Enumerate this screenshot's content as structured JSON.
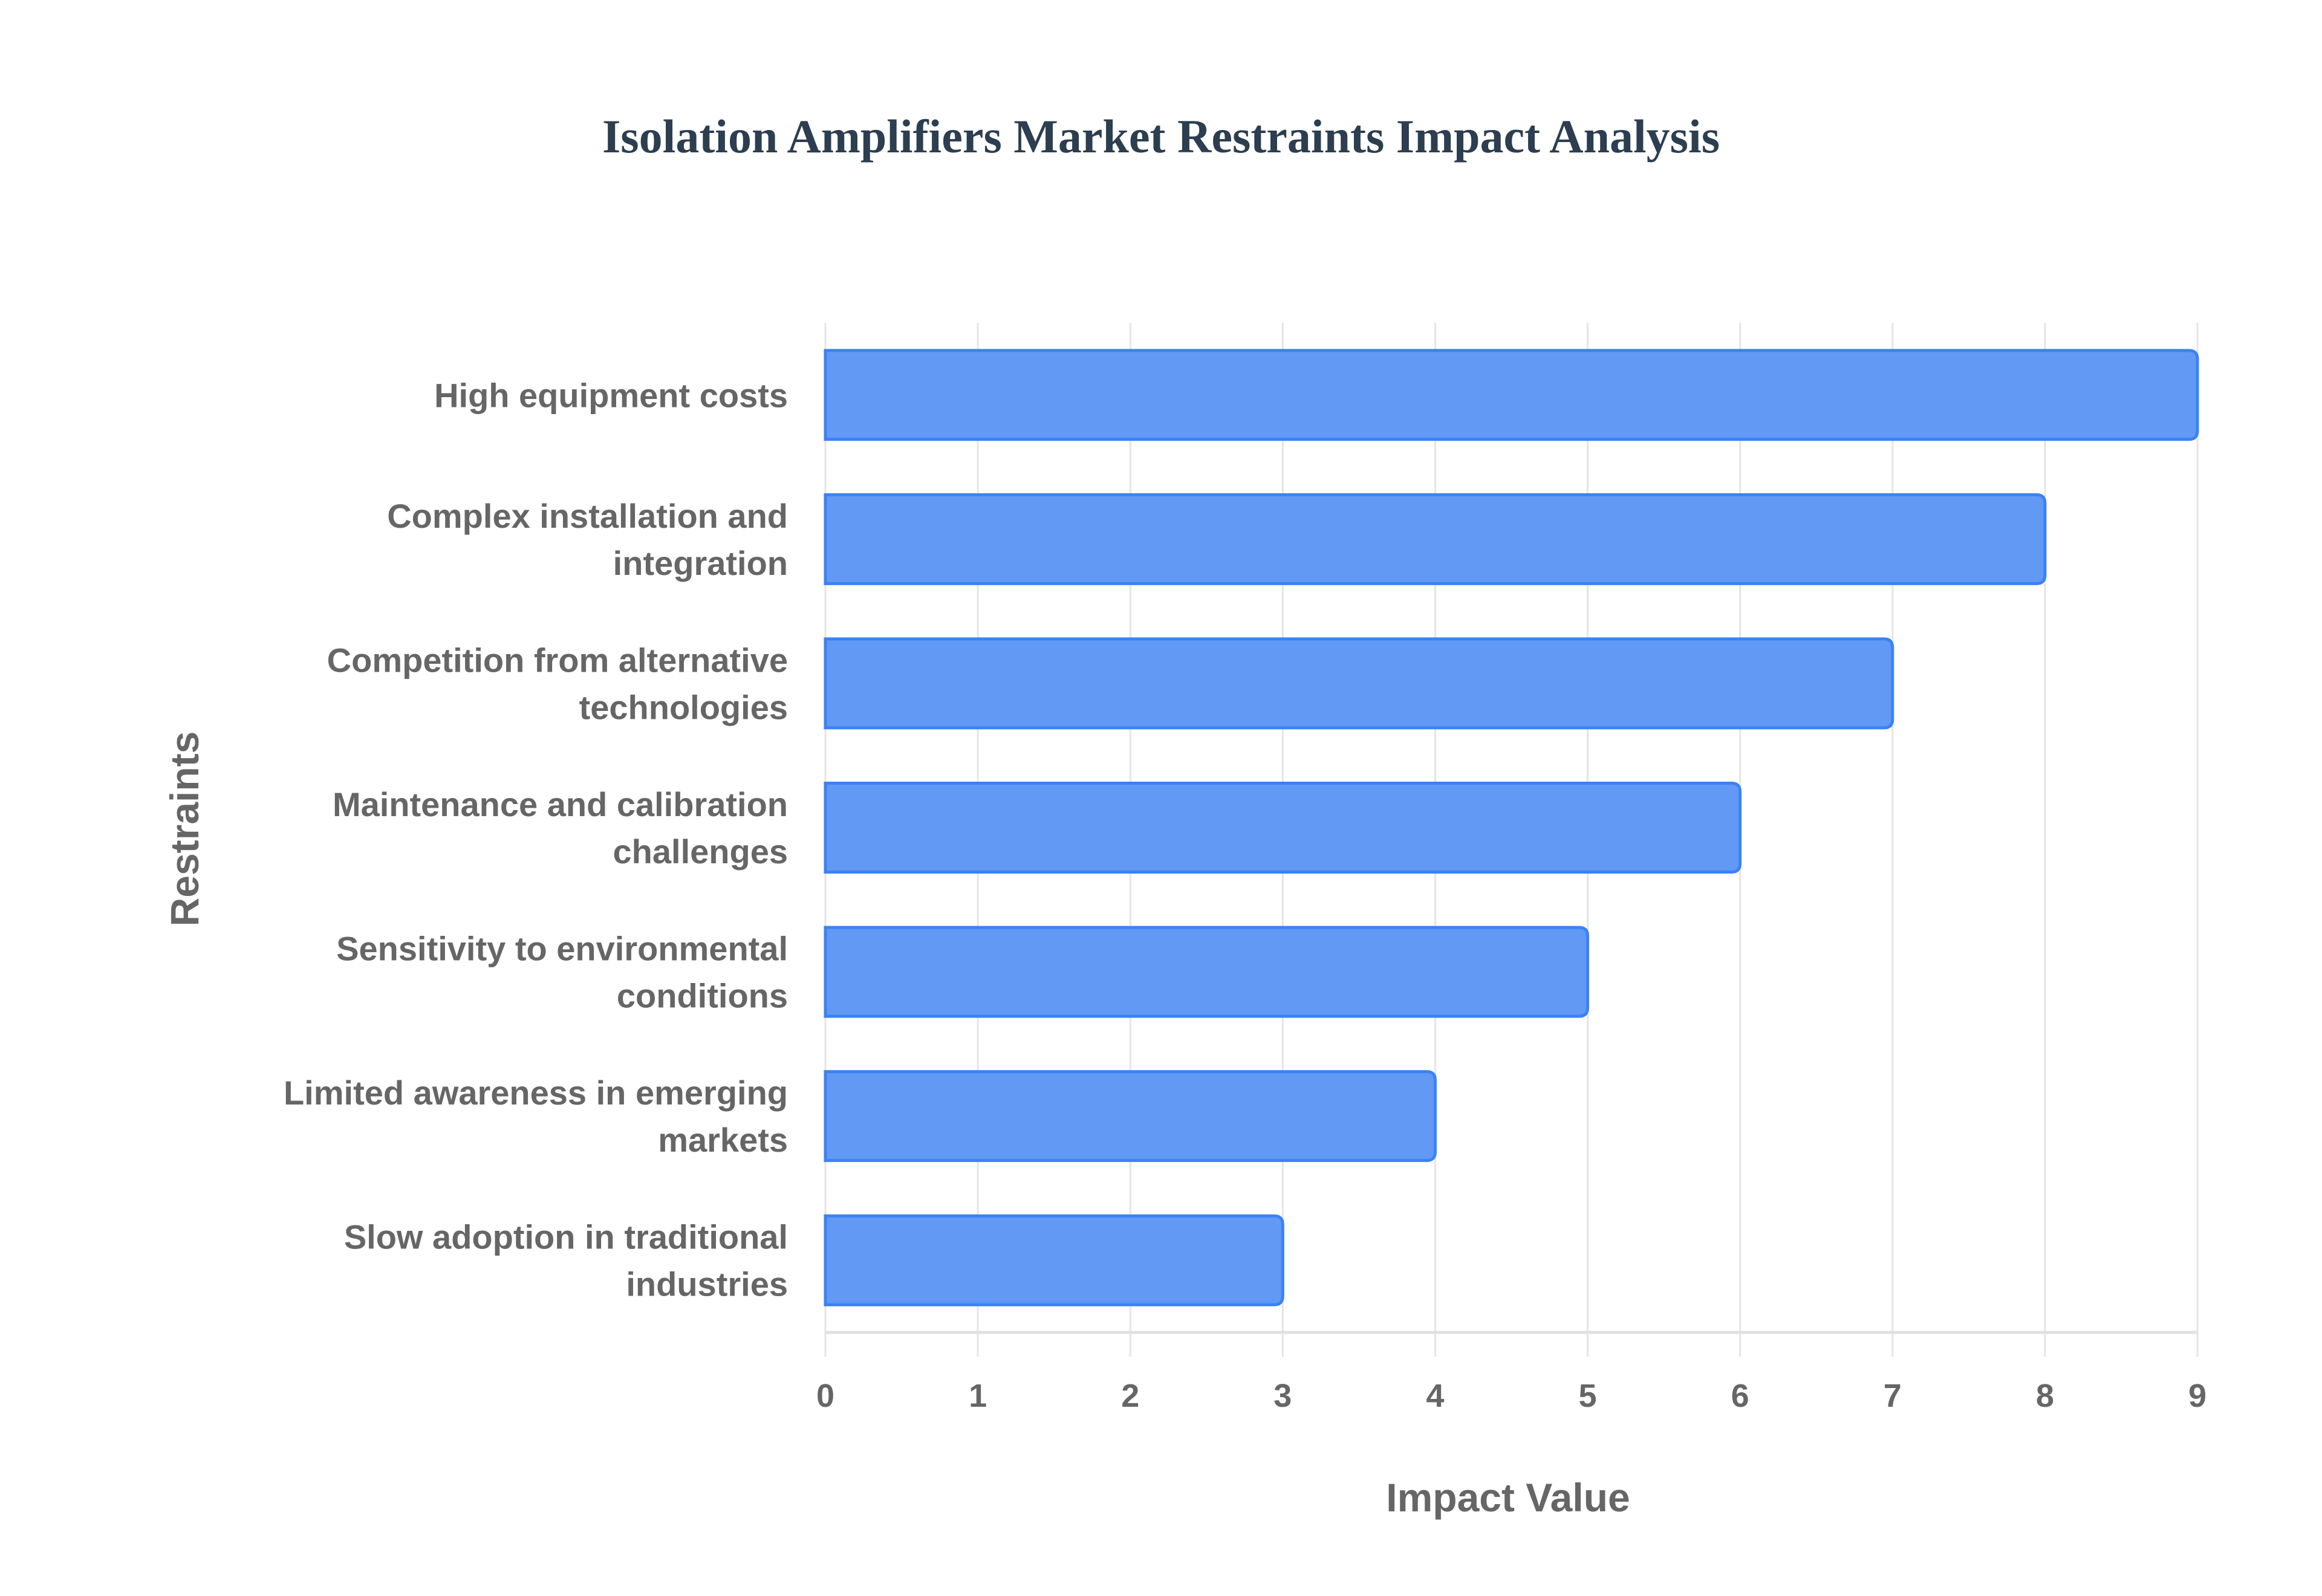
{
  "chart_data": {
    "type": "bar",
    "orientation": "horizontal",
    "title": "Isolation Amplifiers Market Restraints Impact Analysis",
    "xlabel": "Impact Value",
    "ylabel": "Restraints",
    "categories": [
      "High equipment costs",
      "Complex installation and integration",
      "Competition from alternative technologies",
      "Maintenance and calibration challenges",
      "Sensitivity to environmental conditions",
      "Limited awareness in emerging markets",
      "Slow adoption in traditional industries"
    ],
    "category_lines": [
      [
        "High equipment costs"
      ],
      [
        "Complex installation and",
        "integration"
      ],
      [
        "Competition from alternative",
        "technologies"
      ],
      [
        "Maintenance and calibration",
        "challenges"
      ],
      [
        "Sensitivity to environmental",
        "conditions"
      ],
      [
        "Limited awareness in emerging",
        "markets"
      ],
      [
        "Slow adoption in traditional",
        "industries"
      ]
    ],
    "values": [
      9,
      8,
      7,
      6,
      5,
      4,
      3
    ],
    "xlim": [
      0,
      9
    ],
    "xticks": [
      "0",
      "1",
      "2",
      "3",
      "4",
      "5",
      "6",
      "7",
      "8",
      "9"
    ],
    "grid": true,
    "legend": "none",
    "colors": {
      "fill": "#6199f4",
      "stroke": "#3b82f6",
      "grid": "#e5e5e5",
      "text": "#666666",
      "title": "#2c3e50"
    }
  }
}
